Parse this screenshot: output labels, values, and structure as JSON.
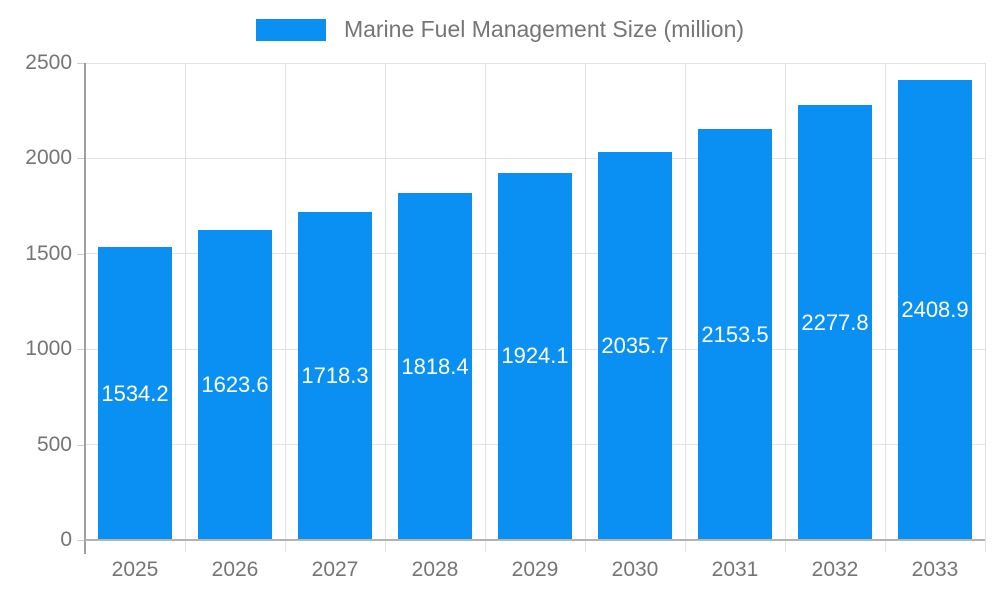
{
  "chart_data": {
    "type": "bar",
    "title": "Marine Fuel Management Size (million)",
    "categories": [
      "2025",
      "2026",
      "2027",
      "2028",
      "2029",
      "2030",
      "2031",
      "2032",
      "2033"
    ],
    "series": [
      {
        "name": "Marine Fuel Management Size (million)",
        "values": [
          1534.2,
          1623.6,
          1718.3,
          1818.4,
          1924.1,
          2035.7,
          2153.5,
          2277.8,
          2408.9
        ]
      }
    ],
    "value_labels": [
      "1534.2",
      "1623.6",
      "1718.3",
      "1818.4",
      "1924.1",
      "2035.7",
      "2153.5",
      "2277.8",
      "2408.9"
    ],
    "xlabel": "",
    "ylabel": "",
    "ylim": [
      0,
      2500
    ],
    "yticks": [
      0,
      500,
      1000,
      1500,
      2000,
      2500
    ],
    "grid": true,
    "legend_position": "top-center"
  },
  "colors": {
    "bar": "#0a90f2",
    "gridline": "#e2e2e2",
    "y_axis_line": "#9e9e9e",
    "x_axis_line": "#b3b3b3",
    "axis_text": "#757575",
    "value_label_text": "#ffffff",
    "background": "#ffffff"
  }
}
